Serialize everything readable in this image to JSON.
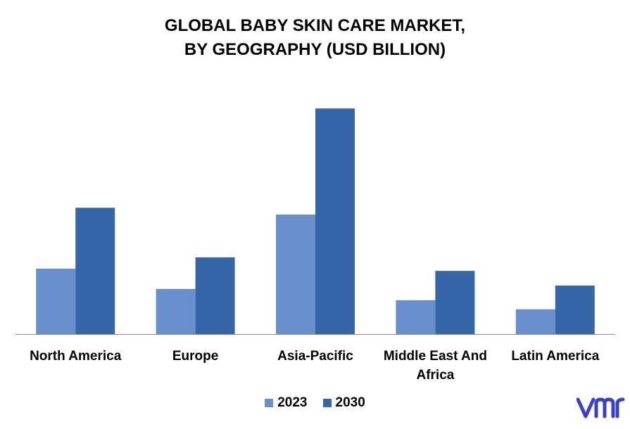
{
  "chart_data": {
    "type": "bar",
    "title_lines": [
      "GLOBAL BABY SKIN CARE MARKET,",
      "BY GEOGRAPHY (USD BILLION)"
    ],
    "categories": [
      "North America",
      "Europe",
      "Asia-Pacific",
      "Middle East And Africa",
      "Latin America"
    ],
    "category_lines": [
      [
        "North America"
      ],
      [
        "Europe"
      ],
      [
        "Asia-Pacific"
      ],
      [
        "Middle East And",
        "Africa"
      ],
      [
        "Latin America"
      ]
    ],
    "series": [
      {
        "name": "2023",
        "color": "#6a8fcd",
        "values": [
          2.9,
          2.0,
          5.3,
          1.5,
          1.1
        ]
      },
      {
        "name": "2030",
        "color": "#3666a8",
        "values": [
          5.6,
          3.4,
          10.0,
          2.8,
          2.15
        ]
      }
    ],
    "ylim": [
      0,
      10.6
    ],
    "xlabel": "",
    "ylabel": "",
    "grid": false,
    "legend_position": "bottom"
  },
  "logo": {
    "text": "vmr",
    "color": "#3a3fc4",
    "icon": "vmr-logo"
  }
}
